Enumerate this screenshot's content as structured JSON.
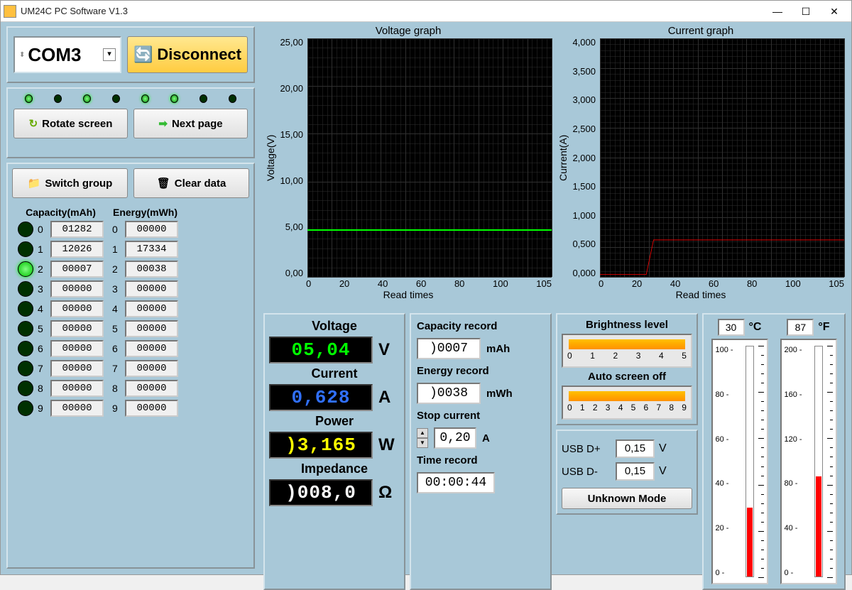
{
  "window": {
    "title": "UM24C PC Software V1.3"
  },
  "connection": {
    "port": "COM3",
    "disconnect_label": "Disconnect"
  },
  "leds": [
    true,
    false,
    true,
    false,
    true,
    true,
    false,
    false
  ],
  "buttons": {
    "rotate": "Rotate screen",
    "next": "Next page",
    "switch": "Switch group",
    "clear": "Clear data"
  },
  "registers": {
    "capacity_header": "Capacity(mAh)",
    "energy_header": "Energy(mWh)",
    "active": 2,
    "rows": [
      {
        "idx": 0,
        "cap": "01282",
        "en": "00000"
      },
      {
        "idx": 1,
        "cap": "12026",
        "en": "17334"
      },
      {
        "idx": 2,
        "cap": "00007",
        "en": "00038"
      },
      {
        "idx": 3,
        "cap": "00000",
        "en": "00000"
      },
      {
        "idx": 4,
        "cap": "00000",
        "en": "00000"
      },
      {
        "idx": 5,
        "cap": "00000",
        "en": "00000"
      },
      {
        "idx": 6,
        "cap": "00000",
        "en": "00000"
      },
      {
        "idx": 7,
        "cap": "00000",
        "en": "00000"
      },
      {
        "idx": 8,
        "cap": "00000",
        "en": "00000"
      },
      {
        "idx": 9,
        "cap": "00000",
        "en": "00000"
      }
    ]
  },
  "voltage_chart": {
    "title": "Voltage graph",
    "ylabel": "Voltage(V)",
    "xlabel": "Read times",
    "ymin": 0,
    "ymax": 25,
    "ystep": 5,
    "yticks": [
      "25,00",
      "20,00",
      "15,00",
      "10,00",
      "5,00",
      "0,00"
    ],
    "xmin": 0,
    "xmax": 105,
    "xstep": 20,
    "xticks": [
      "0",
      "20",
      "40",
      "60",
      "80",
      "100",
      "105"
    ],
    "trace_color": "#00ff00",
    "trace_value": 5.0,
    "bg": "#000000",
    "grid": "#303030"
  },
  "current_chart": {
    "title": "Current graph",
    "ylabel": "Current(A)",
    "xlabel": "Read times",
    "ymin": 0,
    "ymax": 4,
    "ystep": 0.5,
    "yticks": [
      "4,000",
      "3,500",
      "3,000",
      "2,500",
      "2,000",
      "1,500",
      "1,000",
      "0,500",
      "0,000"
    ],
    "xmin": 0,
    "xmax": 105,
    "xstep": 20,
    "xticks": [
      "0",
      "20",
      "40",
      "60",
      "80",
      "100",
      "105"
    ],
    "trace_color": "#ff0000",
    "trace_step_x": 22,
    "trace_level": 0.62,
    "bg": "#000000",
    "grid": "#303030"
  },
  "measurements": {
    "voltage": {
      "label": "Voltage",
      "value": "05,04",
      "unit": "V",
      "color": "#00ff00"
    },
    "current": {
      "label": "Current",
      "value": "0,628",
      "unit": "A",
      "color": "#3070ff"
    },
    "power": {
      "label": "Power",
      "value": ")3,165",
      "unit": "W",
      "color": "#ffff00"
    },
    "impedance": {
      "label": "Impedance",
      "value": ")008,0",
      "unit": "Ω",
      "color": "#ffffff"
    }
  },
  "records": {
    "capacity": {
      "label": "Capacity record",
      "value": ")0007",
      "unit": "mAh"
    },
    "energy": {
      "label": "Energy record",
      "value": ")0038",
      "unit": "mWh"
    },
    "stop": {
      "label": "Stop current",
      "value": "0,20",
      "unit": "A"
    },
    "time": {
      "label": "Time record",
      "value": "00:00:44"
    }
  },
  "sliders": {
    "brightness": {
      "label": "Brightness level",
      "ticks": [
        "0",
        "1",
        "2",
        "3",
        "4",
        "5"
      ],
      "value": 5,
      "max": 5
    },
    "screenoff": {
      "label": "Auto screen off",
      "ticks": [
        "0",
        "1",
        "2",
        "3",
        "4",
        "5",
        "6",
        "7",
        "8",
        "9"
      ],
      "value": 9,
      "max": 9
    }
  },
  "usb": {
    "dplus": {
      "label": "USB D+",
      "value": "0,15",
      "unit": "V"
    },
    "dminus": {
      "label": "USB D-",
      "value": "0,15",
      "unit": "V"
    },
    "mode": "Unknown Mode"
  },
  "temperature": {
    "c": {
      "value": "30",
      "unit": "°C",
      "min": 0,
      "max": 100,
      "current": 30
    },
    "f": {
      "value": "87",
      "unit": "°F",
      "min": 0,
      "max": 200,
      "current": 87
    }
  },
  "colors": {
    "app_bg": "#a8c8d8",
    "slider_fill": "#ffb000"
  }
}
